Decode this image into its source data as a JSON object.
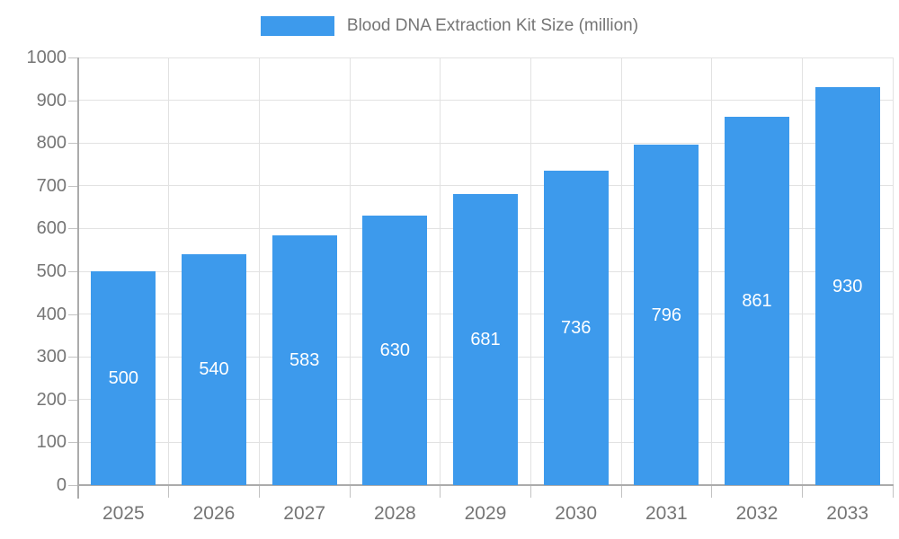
{
  "chart_data": {
    "type": "bar",
    "title": "Blood DNA Extraction Kit Size (million)",
    "categories": [
      "2025",
      "2026",
      "2027",
      "2028",
      "2029",
      "2030",
      "2031",
      "2032",
      "2033"
    ],
    "values": [
      500,
      540,
      583,
      630,
      681,
      736,
      796,
      861,
      930
    ],
    "xlabel": "",
    "ylabel": "",
    "ylim": [
      0,
      1000
    ],
    "y_ticks": [
      0,
      100,
      200,
      300,
      400,
      500,
      600,
      700,
      800,
      900,
      1000
    ],
    "grid": true,
    "legend_position": "top-center",
    "bar_labels_shown": true,
    "colors": {
      "bar": "#3d9aec",
      "bar_label": "#ffffff",
      "axis_text": "#757575",
      "legend_text": "#757575",
      "gridline": "#e2e2e2",
      "axis_line": "#ababab",
      "tick": "#c2c2c2",
      "background": "#ffffff"
    }
  }
}
